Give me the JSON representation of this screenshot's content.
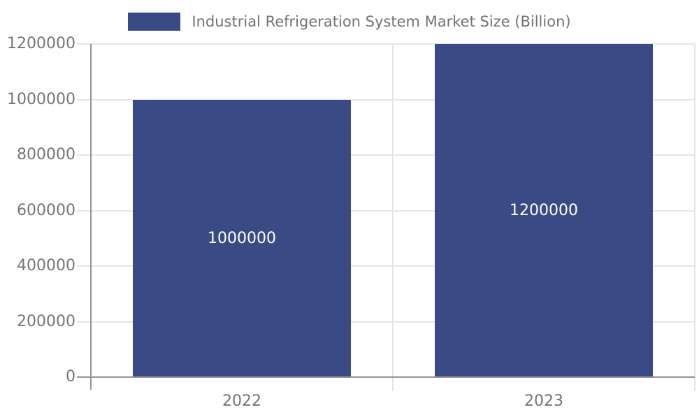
{
  "legend": {
    "label": "Industrial Refrigeration System Market Size (Billion)"
  },
  "colors": {
    "bar": "#3A4A84",
    "grid": "#E5E5E5",
    "axis": "#949494",
    "tick_text": "#757575",
    "bar_label": "#FFFFFF",
    "legend_text": "#737373"
  },
  "chart_data": {
    "type": "bar",
    "title": "",
    "categories": [
      "2022",
      "2023"
    ],
    "series": [
      {
        "name": "Industrial Refrigeration System Market Size (Billion)",
        "values": [
          1000000,
          1200000
        ]
      }
    ],
    "bar_labels": [
      "1000000",
      "1200000"
    ],
    "ytick_labels": [
      "0",
      "200000",
      "400000",
      "600000",
      "800000",
      "1000000",
      "1200000"
    ],
    "ylim": [
      0,
      1200000
    ],
    "ytick_step": 200000,
    "grid": true,
    "legend_position": "top"
  }
}
